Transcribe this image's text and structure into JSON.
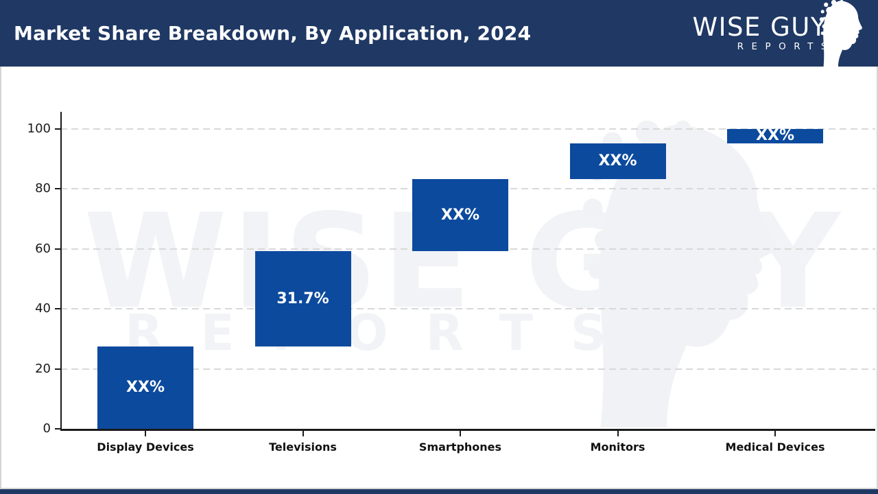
{
  "header": {
    "title": "Market Share Breakdown, By Application, 2024",
    "logo": {
      "line1": "WISE GUY",
      "line2": "REPORTS"
    }
  },
  "watermark": {
    "line1": "WISE GUY",
    "line2": "REPORTS"
  },
  "chart_data": {
    "type": "bar",
    "subtype": "waterfall-floating-bars",
    "title": "Market Share Breakdown, By Application, 2024",
    "categories": [
      "Display Devices",
      "Televisions",
      "Smartphones",
      "Monitors",
      "Medical Devices"
    ],
    "segments": [
      {
        "category": "Display Devices",
        "start": 0,
        "end": 27.4,
        "label": "XX%"
      },
      {
        "category": "Televisions",
        "start": 27.4,
        "end": 59.1,
        "label": "31.7%"
      },
      {
        "category": "Smartphones",
        "start": 59.1,
        "end": 83.3,
        "label": "XX%"
      },
      {
        "category": "Monitors",
        "start": 83.3,
        "end": 95,
        "label": "XX%"
      },
      {
        "category": "Medical Devices",
        "start": 95,
        "end": 100,
        "label": "XX%"
      }
    ],
    "yticks": [
      0,
      20,
      40,
      60,
      80,
      100
    ],
    "ylim": [
      0,
      105
    ],
    "xlabel": "",
    "ylabel": "",
    "grid": "horizontal-dashed",
    "legend": "none",
    "bar_color": "#0c4a9e",
    "bar_label_color": "#ffffff"
  },
  "colors": {
    "header_bg": "#1f3864",
    "footer_bg": "#1f3864",
    "bar": "#0c4a9e",
    "axis": "#1a1a1a",
    "grid": "#d8d8d8",
    "figure_border": "#d4d4d4",
    "watermark": "#f2f3f6",
    "tick_text": "#1a1a1a"
  }
}
